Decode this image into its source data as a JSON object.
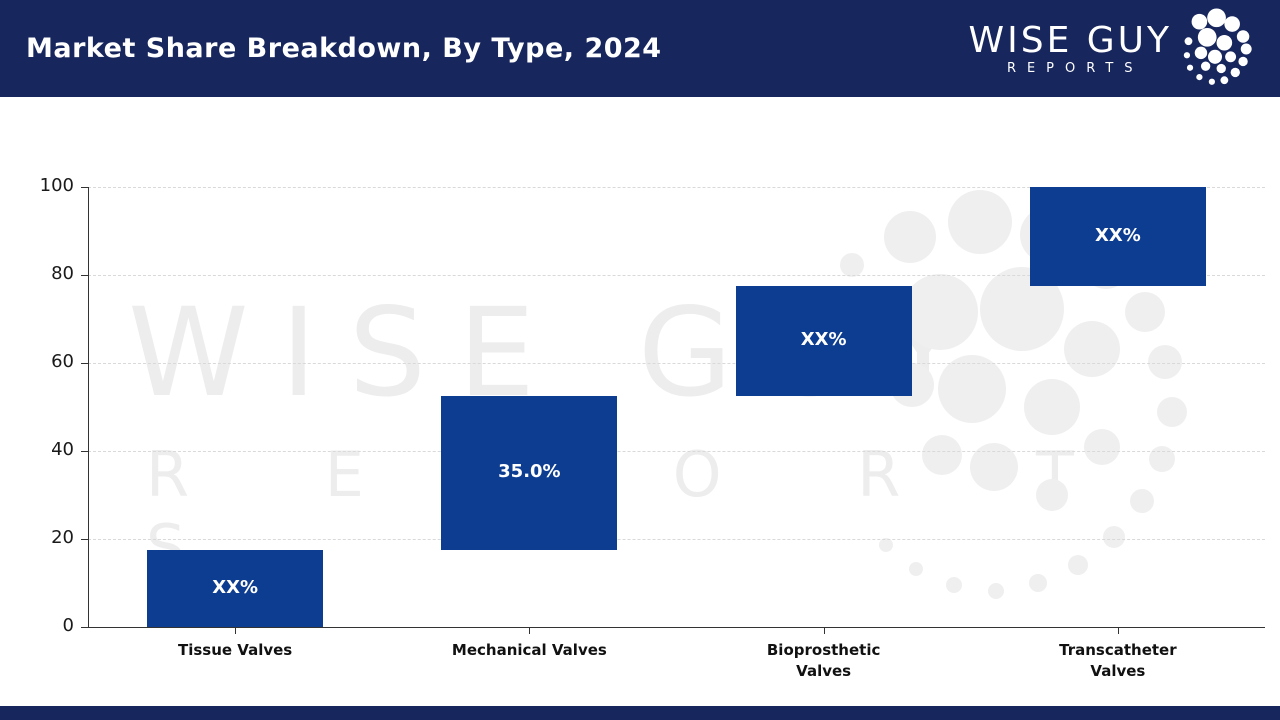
{
  "header": {
    "title": "Market Share Breakdown, By Type, 2024",
    "logo": {
      "line1": "WISE GUY",
      "line2": "REPORTS"
    }
  },
  "watermark": {
    "line1": "WISE GUY",
    "line2": "R E P O R T S"
  },
  "chart_data": {
    "type": "bar",
    "subtype": "floating-waterfall",
    "title": "Market Share Breakdown, By Type, 2024",
    "categories": [
      [
        "Tissue Valves"
      ],
      [
        "Mechanical Valves"
      ],
      [
        "Bioprosthetic",
        "Valves"
      ],
      [
        "Transcatheter",
        "Valves"
      ]
    ],
    "segments": [
      {
        "category": "Tissue Valves",
        "start": 0,
        "end": 17.5,
        "label": "XX%"
      },
      {
        "category": "Mechanical Valves",
        "start": 17.5,
        "end": 52.5,
        "label": "35.0%"
      },
      {
        "category": "Bioprosthetic Valves",
        "start": 52.5,
        "end": 77.5,
        "label": "XX%"
      },
      {
        "category": "Transcatheter Valves",
        "start": 77.5,
        "end": 100,
        "label": "XX%"
      }
    ],
    "ylim": [
      0,
      100
    ],
    "yticks": [
      0,
      20,
      40,
      60,
      80,
      100
    ],
    "xlabel": "",
    "ylabel": "",
    "grid": "horizontal-dashed",
    "legend": "none",
    "bar_color": "#0d3d91",
    "bar_label_color": "#ffffff",
    "header_color": "#17265d"
  }
}
